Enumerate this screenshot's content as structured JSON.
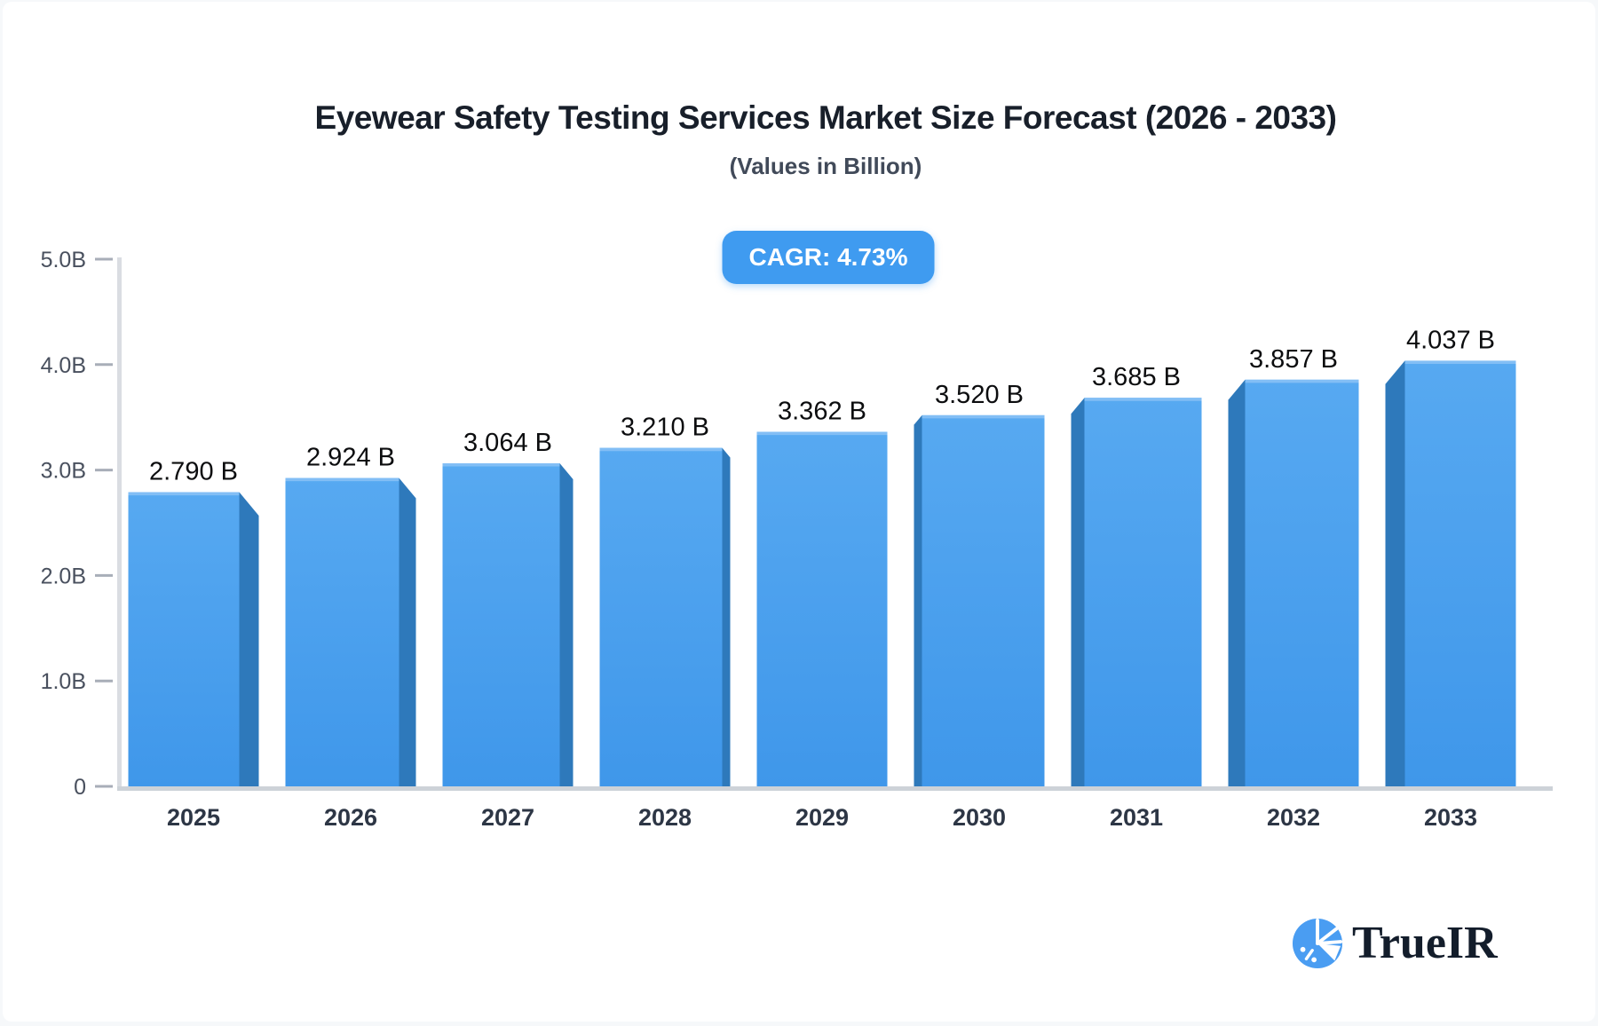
{
  "header": {
    "title": "Eyewear Safety Testing Services Market Size Forecast (2026 - 2033)",
    "subtitle": "(Values in Billion)"
  },
  "badge": {
    "label": "CAGR: 4.73%",
    "background": "#3f9bf0",
    "text_color": "#ffffff"
  },
  "chart_data": {
    "type": "bar",
    "title": "Eyewear Safety Testing Services Market Size Forecast (2026 - 2033)",
    "subtitle": "(Values in Billion)",
    "unit": "Billion",
    "cagr": "4.73%",
    "categories": [
      "2025",
      "2026",
      "2027",
      "2028",
      "2029",
      "2030",
      "2031",
      "2032",
      "2033"
    ],
    "values": [
      2.79,
      2.924,
      3.064,
      3.21,
      3.362,
      3.52,
      3.685,
      3.857,
      4.037
    ],
    "value_labels": [
      "2.790 B",
      "2.924 B",
      "3.064 B",
      "3.210 B",
      "3.362 B",
      "3.520 B",
      "3.685 B",
      "3.857 B",
      "4.037 B"
    ],
    "ytick_labels": [
      "0",
      "1.0B",
      "2.0B",
      "3.0B",
      "4.0B",
      "5.0B"
    ],
    "ytick_values": [
      0,
      1,
      2,
      3,
      4,
      5
    ],
    "ylim": [
      0,
      5
    ],
    "xlabel": "",
    "ylabel": "",
    "grid": false,
    "legend": false,
    "bar_color_top": "#57a9f1",
    "bar_color_bottom": "#3f97ea",
    "bar_side_color": "#2e79bb",
    "bar_top_edge_color": "#82bef5",
    "axis_line_color": "#dadde2",
    "baseline_color": "#cdd2d8",
    "tick_dash_color": "#a8aeb8"
  },
  "logo": {
    "text": "TrueIR",
    "icon": "pie-chart-icon",
    "icon_color": "#4a9df2",
    "text_color": "#131d2b"
  }
}
